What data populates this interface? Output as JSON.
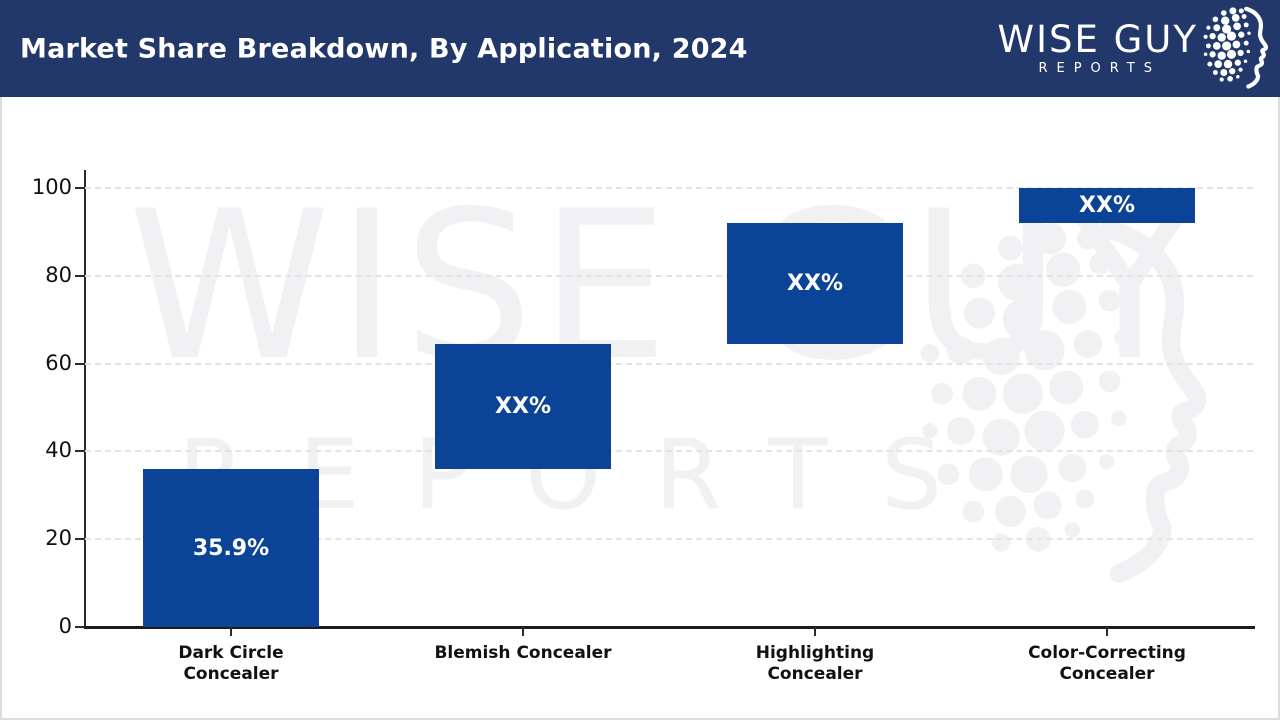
{
  "header": {
    "title": "Market Share Breakdown, By Application, 2024",
    "bg_color": "#22386a",
    "logo": {
      "line1": "WISE GUY",
      "line2": "REPORTS"
    }
  },
  "watermark": {
    "line1": "WISE GUY",
    "line2": "REPORTS"
  },
  "chart_data": {
    "type": "bar",
    "variant": "floating-waterfall",
    "title": "Market Share Breakdown, By Application, 2024",
    "categories": [
      "Dark Circle\nConcealer",
      "Blemish Concealer",
      "Highlighting\nConcealer",
      "Color-Correcting\nConcealer"
    ],
    "series": [
      {
        "name": "Market Share (%)",
        "segments": [
          {
            "category": "Dark Circle Concealer",
            "start": 0,
            "end": 35.9,
            "label": "35.9%"
          },
          {
            "category": "Blemish Concealer",
            "start": 36,
            "end": 64.5,
            "label": "XX%"
          },
          {
            "category": "Highlighting Concealer",
            "start": 64.5,
            "end": 92,
            "label": "XX%"
          },
          {
            "category": "Color-Correcting Concealer",
            "start": 92,
            "end": 100,
            "label": "XX%"
          }
        ]
      }
    ],
    "xlabel": "",
    "ylabel": "",
    "ylim": [
      0,
      100
    ],
    "yticks": [
      0,
      20,
      40,
      60,
      80,
      100
    ],
    "grid": {
      "horizontal": true,
      "style": "dashed",
      "color": "#e3e3e3"
    },
    "bar_color": "#0b4397",
    "bar_label_color": "#ffffff",
    "axis_color": "#2b2b2b",
    "legend": "none"
  }
}
